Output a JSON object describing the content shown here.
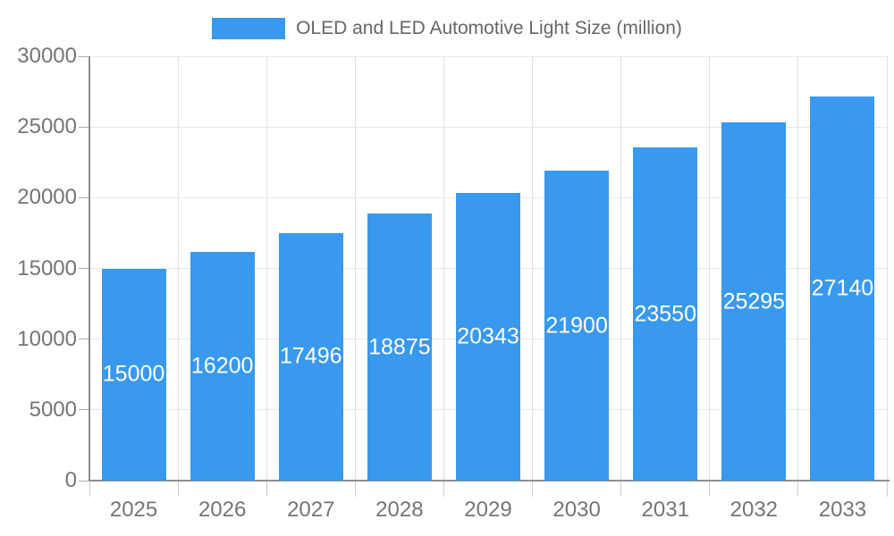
{
  "chart_data": {
    "type": "bar",
    "title": "OLED and LED Automotive Light Size (million)",
    "categories": [
      "2025",
      "2026",
      "2027",
      "2028",
      "2029",
      "2030",
      "2031",
      "2032",
      "2033"
    ],
    "values": [
      15000,
      16200,
      17496,
      18875,
      20343,
      21900,
      23550,
      25295,
      27140
    ],
    "series": [
      {
        "name": "OLED and LED Automotive Light Size (million)",
        "values": [
          15000,
          16200,
          17496,
          18875,
          20343,
          21900,
          23550,
          25295,
          27140
        ]
      }
    ],
    "xlabel": "",
    "ylabel": "",
    "ylim": [
      0,
      30000
    ],
    "yticks": [
      0,
      5000,
      10000,
      15000,
      20000,
      25000,
      30000
    ],
    "ytick_labels": [
      "0",
      "5000",
      "10000",
      "15000",
      "20000",
      "25000",
      "30000"
    ],
    "grid": true,
    "legend_position": "top-center",
    "value_labels": "inside-center",
    "colors": {
      "bar": "#3999ee",
      "bar_label": "#ffffff",
      "grid_h": "#e8e8e8",
      "grid_v": "#e0e0e0",
      "axis_line": "#8f8f8f",
      "ytick_mark": "#aaaaaa",
      "xtick_mark": "#cccccc",
      "axis_text": "#757575",
      "legend_text": "#666666"
    }
  }
}
